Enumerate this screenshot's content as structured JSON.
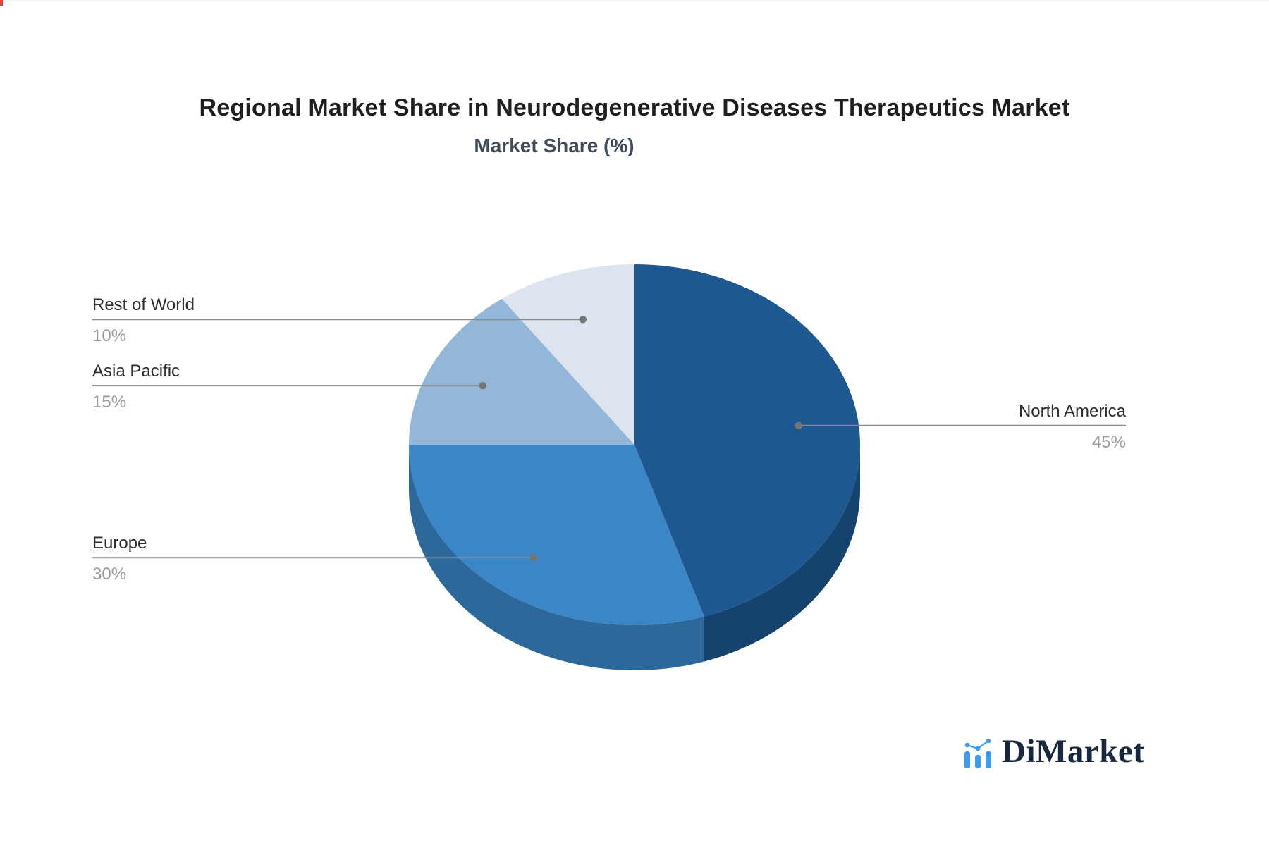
{
  "header": {
    "title": "Regional Market Share in Neurodegenerative Diseases Therapeutics Market",
    "subtitle": "Market Share (%)"
  },
  "chart_data": {
    "type": "pie",
    "title": "Regional Market Share in Neurodegenerative Diseases Therapeutics Market",
    "subtitle": "Market Share (%)",
    "unit": "%",
    "effect": "3d",
    "direction": "clockwise",
    "start_angle_deg": 0,
    "legend_position": "callout-labels",
    "slices": [
      {
        "label": "North America",
        "value": 45,
        "value_text": "45%",
        "color": "#1d5890",
        "side_color": "#15436d"
      },
      {
        "label": "Europe",
        "value": 30,
        "value_text": "30%",
        "color": "#3b86c6",
        "side_color": "#2d689a"
      },
      {
        "label": "Asia Pacific",
        "value": 15,
        "value_text": "15%",
        "color": "#94b6d8",
        "side_color": "#6e8fb3"
      },
      {
        "label": "Rest of World",
        "value": 10,
        "value_text": "10%",
        "color": "#dce4ef",
        "side_color": "#b5c2d4"
      }
    ],
    "callout_line_color": "#8c8c8c",
    "callout_dot_color": "#757575"
  },
  "branding": {
    "name": "DiMarket",
    "icon": "bar-chart-trend-icon",
    "icon_color": "#3f9bf0",
    "text_color": "#17273f"
  }
}
